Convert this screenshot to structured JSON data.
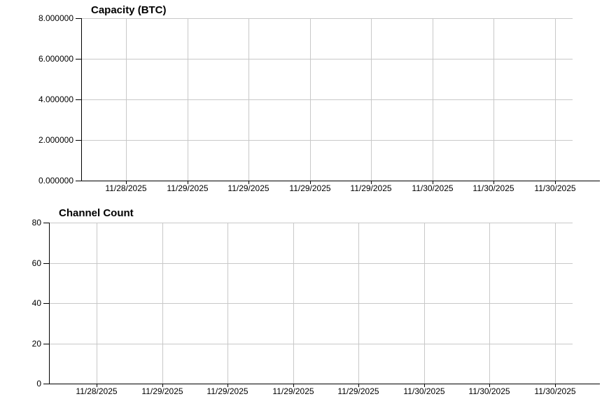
{
  "colors": {
    "background": "#ffffff",
    "grid_line": "#c8c8c8",
    "axis_line": "#000000",
    "text": "#000000"
  },
  "chart_data": [
    {
      "type": "line",
      "title": "Capacity (BTC)",
      "xlabel": "",
      "ylabel": "",
      "ylim": [
        0,
        8
      ],
      "y_tick_labels": [
        "8.000000",
        "6.000000",
        "4.000000",
        "2.000000",
        "0.000000"
      ],
      "x_tick_labels": [
        "11/28/2025",
        "11/29/2025",
        "11/29/2025",
        "11/29/2025",
        "11/29/2025",
        "11/30/2025",
        "11/30/2025",
        "11/30/2025"
      ],
      "grid": true,
      "legend": false,
      "series": [],
      "note": "empty plot area - no data series rendered"
    },
    {
      "type": "line",
      "title": "Channel Count",
      "xlabel": "",
      "ylabel": "",
      "ylim": [
        0,
        80
      ],
      "y_tick_labels": [
        "80",
        "60",
        "40",
        "20",
        "0"
      ],
      "x_tick_labels": [
        "11/28/2025",
        "11/29/2025",
        "11/29/2025",
        "11/29/2025",
        "11/29/2025",
        "11/30/2025",
        "11/30/2025",
        "11/30/2025"
      ],
      "grid": true,
      "legend": false,
      "series": [],
      "note": "empty plot area - no data series rendered"
    }
  ]
}
